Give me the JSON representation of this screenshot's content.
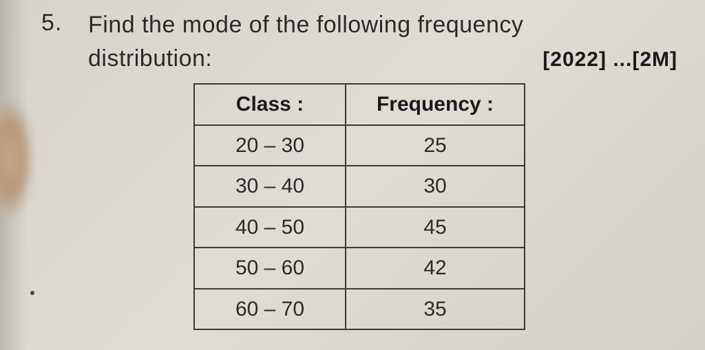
{
  "question": {
    "number": "5.",
    "text_line1": "Find the mode of the following frequency",
    "text_line2": "distribution:",
    "year": "[2022]",
    "marks": "...[2M]"
  },
  "table": {
    "headers": {
      "class": "Class :",
      "frequency": "Frequency :"
    },
    "rows": [
      {
        "class": "20 – 30",
        "frequency": "25"
      },
      {
        "class": "30 – 40",
        "frequency": "30"
      },
      {
        "class": "40 – 50",
        "frequency": "45"
      },
      {
        "class": "50 – 60",
        "frequency": "42"
      },
      {
        "class": "60 – 70",
        "frequency": "35"
      }
    ],
    "border_color": "#3a3a3a",
    "header_fontweight": 700,
    "cell_fontsize": 30
  },
  "styling": {
    "background_gradient": [
      "#d8d4cc",
      "#e0dcd4",
      "#d4d0c8"
    ],
    "text_color": "#2a2a2a",
    "question_fontsize": 34,
    "yearmarks_fontsize": 30,
    "font_family": "Arial"
  }
}
